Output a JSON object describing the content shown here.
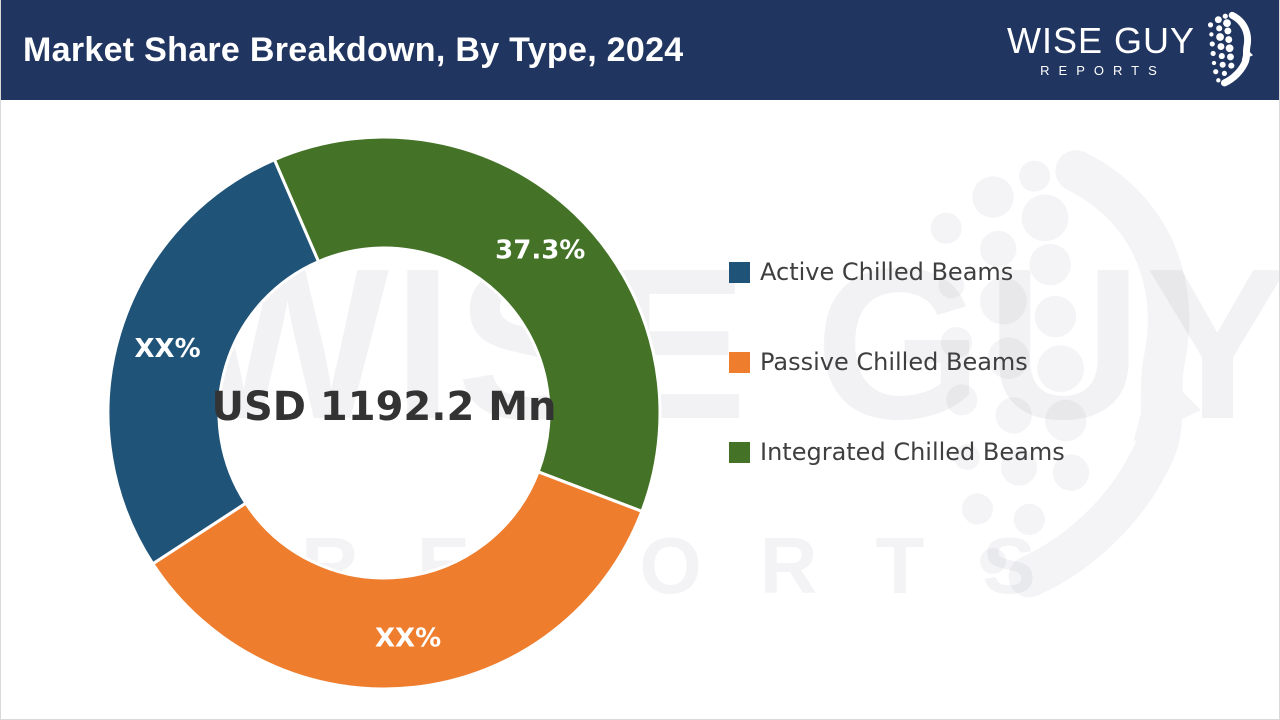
{
  "header": {
    "title": "Market Share Breakdown, By Type, 2024",
    "bg_color": "#213561",
    "logo": {
      "brand": "WISE GUY",
      "sub": "REPORTS"
    }
  },
  "chart_data": {
    "type": "pie",
    "subtype": "donut",
    "title": "Market Share Breakdown, By Type, 2024",
    "center_label": "USD 1192.2 Mn",
    "legend_position": "right",
    "start_angle_clockwise_from_top_deg": -23.4,
    "slices_clockwise": [
      {
        "name": "Integrated Chilled Beams",
        "percent": 37.3,
        "display_label": "37.3%",
        "color": "#447327"
      },
      {
        "name": "Passive Chilled Beams",
        "percent": 35.0,
        "display_label": "XX%",
        "color": "#ee7d2e"
      },
      {
        "name": "Active Chilled Beams",
        "percent": 27.7,
        "display_label": "XX%",
        "color": "#1f5378"
      }
    ]
  },
  "legend": {
    "items": [
      {
        "label": "Active Chilled Beams",
        "color": "#1f5378"
      },
      {
        "label": "Passive Chilled Beams",
        "color": "#ee7d2e"
      },
      {
        "label": "Integrated Chilled Beams",
        "color": "#447327"
      }
    ]
  },
  "watermark": {
    "line1": "WISE GUY",
    "line2": "REPORTS"
  },
  "colors": {
    "header_bg": "#213561",
    "body_bg": "#ffffff",
    "center_text": "#333333",
    "legend_text": "#3f3f3f",
    "border": "#d9d9d9"
  }
}
